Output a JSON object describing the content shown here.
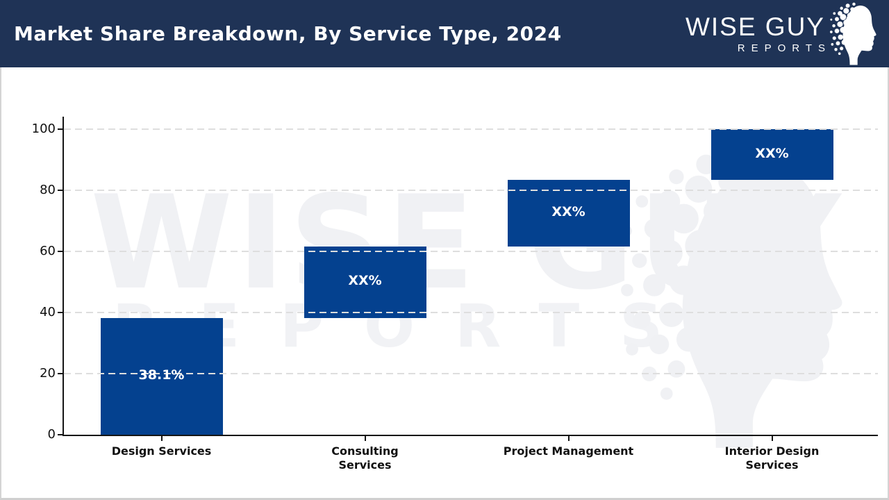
{
  "header": {
    "title": "Market Share Breakdown, By Service Type, 2024",
    "logo_word": "WISE GUY",
    "logo_sub": "REPORTS"
  },
  "watermark": {
    "line1": "WISE GUY",
    "line2": "REPORTS"
  },
  "colors": {
    "header_bg": "#1f3356",
    "bar_fill": "#04418f",
    "bar_label": "#ffffff",
    "axis": "#141414",
    "grid": "#dedede",
    "watermark": "#f0f1f4",
    "canvas_bg": "#ffffff"
  },
  "chart_data": {
    "type": "bar",
    "subtype": "waterfall",
    "title": "Market Share Breakdown, By Service Type, 2024",
    "xlabel": "",
    "ylabel": "",
    "ylim": [
      0,
      104
    ],
    "yticks": [
      0,
      20,
      40,
      60,
      80,
      100
    ],
    "grid": "horizontal-dashed",
    "legend": "none",
    "categories": [
      "Design Services",
      "Consulting Services",
      "Project Management",
      "Interior Design Services"
    ],
    "category_label_lines": [
      [
        "Design Services"
      ],
      [
        "Consulting",
        "Services"
      ],
      [
        "Project Management"
      ],
      [
        "Interior Design",
        "Services"
      ]
    ],
    "bars": [
      {
        "category": "Design Services",
        "start": 0,
        "end": 38.1,
        "value": 38.1,
        "label": "38.1%"
      },
      {
        "category": "Consulting Services",
        "start": 38.1,
        "end": 61.7,
        "value": 23.6,
        "label": "XX%"
      },
      {
        "category": "Project Management",
        "start": 61.7,
        "end": 83.3,
        "value": 21.6,
        "label": "XX%"
      },
      {
        "category": "Interior Design Services",
        "start": 83.3,
        "end": 100.0,
        "value": 16.7,
        "label": "XX%"
      }
    ]
  }
}
